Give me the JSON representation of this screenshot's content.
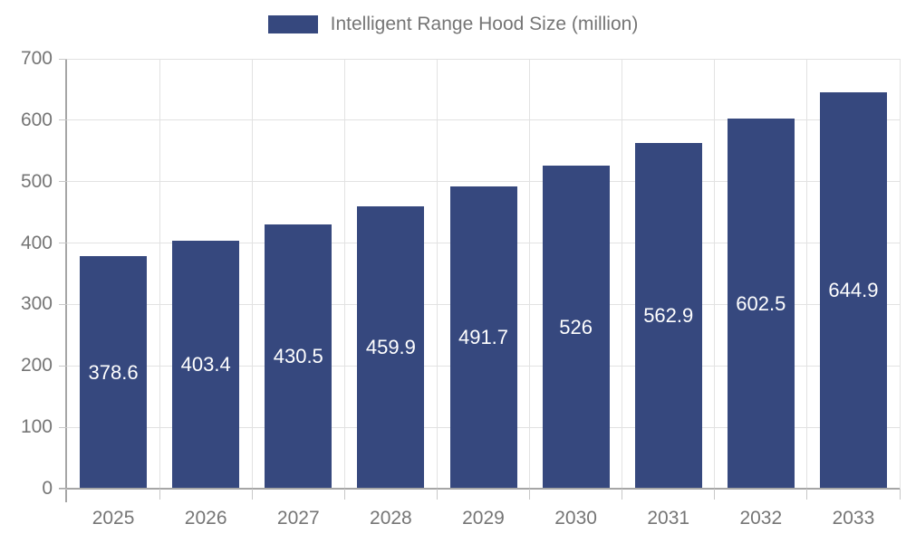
{
  "chart_data": {
    "type": "bar",
    "title": "Intelligent Range Hood Size (million)",
    "legend": [
      "Intelligent Range Hood Size (million)"
    ],
    "legend_position": "top-center",
    "categories": [
      "2025",
      "2026",
      "2027",
      "2028",
      "2029",
      "2030",
      "2031",
      "2032",
      "2033"
    ],
    "series": [
      {
        "name": "Intelligent Range Hood Size (million)",
        "values": [
          378.6,
          403.4,
          430.5,
          459.9,
          491.7,
          526,
          562.9,
          602.5,
          644.9
        ]
      }
    ],
    "xlabel": "",
    "ylabel": "",
    "ylim": [
      0,
      700
    ],
    "yticks": [
      0,
      100,
      200,
      300,
      400,
      500,
      600,
      700
    ],
    "grid": true,
    "bar_value_labels_visible": true,
    "colors": {
      "bar": "#36487E",
      "bar_label": "#ffffff",
      "axis_text": "#757575",
      "grid_line": "#e2e2e2",
      "axis_line": "#a6a6a6",
      "tick_line": "#c8c8c8",
      "background": "#ffffff"
    }
  }
}
